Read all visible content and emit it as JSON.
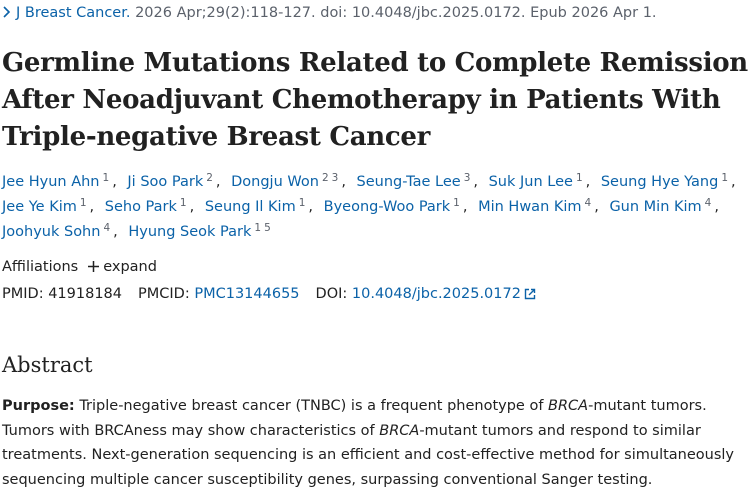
{
  "citation": {
    "journal": "J Breast Cancer.",
    "details": "2026 Apr;29(2):118-127. doi: 10.4048/jbc.2025.0172. Epub 2026 Apr 1."
  },
  "title": "Germline Mutations Related to Complete Remission After Neoadjuvant Chemotherapy in Patients With Triple-negative Breast Cancer",
  "author_separator": ",",
  "authors": [
    {
      "name": "Jee Hyun Ahn",
      "affiliations": [
        1
      ]
    },
    {
      "name": "Ji Soo Park",
      "affiliations": [
        2
      ]
    },
    {
      "name": "Dongju Won",
      "affiliations": [
        2,
        3
      ]
    },
    {
      "name": "Seung-Tae Lee",
      "affiliations": [
        3
      ]
    },
    {
      "name": "Suk Jun Lee",
      "affiliations": [
        1
      ]
    },
    {
      "name": "Seung Hye Yang",
      "affiliations": [
        1
      ]
    },
    {
      "name": "Jee Ye Kim",
      "affiliations": [
        1
      ]
    },
    {
      "name": "Seho Park",
      "affiliations": [
        1
      ]
    },
    {
      "name": "Seung Il Kim",
      "affiliations": [
        1
      ]
    },
    {
      "name": "Byeong-Woo Park",
      "affiliations": [
        1
      ]
    },
    {
      "name": "Min Hwan Kim",
      "affiliations": [
        4
      ]
    },
    {
      "name": "Gun Min Kim",
      "affiliations": [
        4
      ]
    },
    {
      "name": "Joohyuk Sohn",
      "affiliations": [
        4
      ]
    },
    {
      "name": "Hyung Seok Park",
      "affiliations": [
        1,
        5
      ]
    }
  ],
  "affiliations": {
    "label": "Affiliations",
    "toggle": "expand"
  },
  "identifiers": [
    {
      "label": "PMID:",
      "value": "41918184",
      "link": false
    },
    {
      "label": "PMCID:",
      "value": "PMC13144655",
      "link": true
    },
    {
      "label": "DOI:",
      "value": "10.4048/jbc.2025.0172",
      "link": true
    }
  ],
  "abstract": {
    "heading": "Abstract",
    "label": "Purpose:",
    "segments": [
      {
        "text": "Triple-negative breast cancer (TNBC) is a frequent phenotype of ",
        "italic": false
      },
      {
        "text": "BRCA",
        "italic": true
      },
      {
        "text": "-mutant tumors. Tumors with BRCAness may show characteristics of ",
        "italic": false
      },
      {
        "text": "BRCA",
        "italic": true
      },
      {
        "text": "-mutant tumors and respond to similar treatments. Next-generation sequencing is an efficient and cost-effective method for simultaneously sequencing multiple cancer susceptibility genes, surpassing conventional Sanger testing.",
        "italic": false
      }
    ]
  }
}
